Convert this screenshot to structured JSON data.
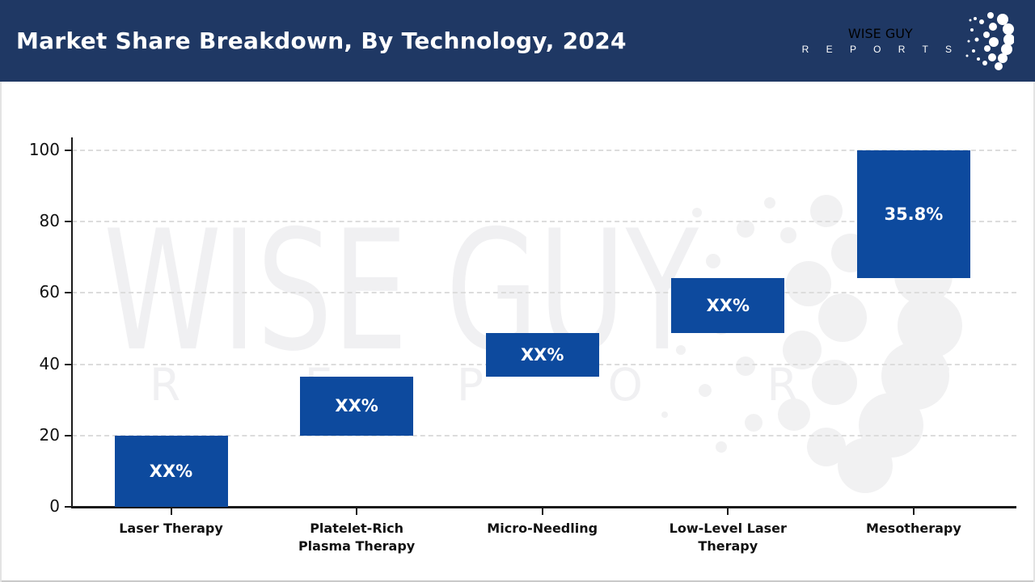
{
  "header": {
    "title": "Market Share Breakdown, By Technology, 2024",
    "brand": {
      "line1": "WISE GUY",
      "line2": "R E P O R T S"
    }
  },
  "watermark": {
    "line1": "WISE GUY",
    "line2": "R E P O R T S"
  },
  "colors": {
    "header_bg": "#1f3864",
    "bar_blue": "#0d4a9e",
    "bar_label": "#ffffff",
    "gridline": "#dcdcdc",
    "axis": "#1a1a1a",
    "watermark": "#f0f0f2"
  },
  "chart_data": {
    "type": "bar",
    "variant": "waterfall",
    "title": "Market Share Breakdown, By Technology, 2024",
    "categories": [
      "Laser Therapy",
      "Platelet-Rich\nPlasma Therapy",
      "Micro-Needling",
      "Low-Level Laser\nTherapy",
      "Mesotherapy"
    ],
    "segments": [
      {
        "start": 0,
        "end": 20,
        "label": "XX%"
      },
      {
        "start": 20,
        "end": 36.6,
        "label": "XX%"
      },
      {
        "start": 36.6,
        "end": 48.8,
        "label": "XX%"
      },
      {
        "start": 48.8,
        "end": 64.2,
        "label": "XX%"
      },
      {
        "start": 64.2,
        "end": 100,
        "label": "35.8%"
      }
    ],
    "xlabel": "",
    "ylabel": "",
    "ylim": [
      0,
      100
    ],
    "yticks": [
      0,
      20,
      40,
      60,
      80,
      100
    ],
    "grid": "horizontal-dashed",
    "legend": "none"
  }
}
